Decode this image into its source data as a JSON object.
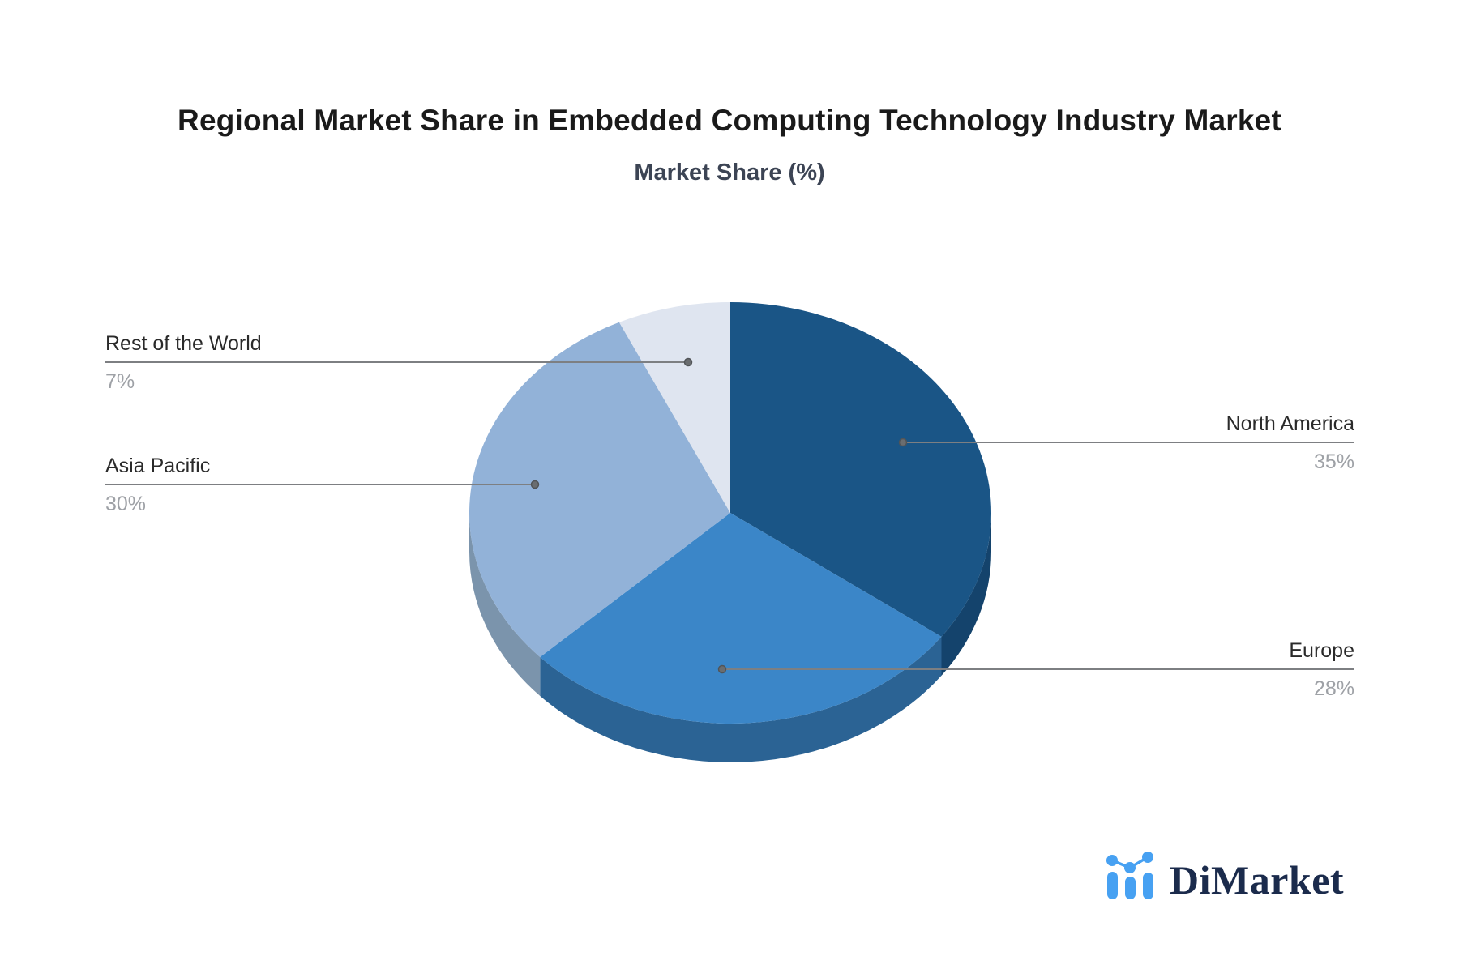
{
  "header": {
    "title": "Regional Market Share in Embedded Computing Technology Industry Market",
    "subtitle": "Market Share (%)"
  },
  "chart_data": {
    "type": "pie",
    "effect": "3d",
    "title": "Regional Market Share in Embedded Computing Technology Industry Market",
    "subtitle": "Market Share (%)",
    "unit": "%",
    "start_angle_deg": 0,
    "direction": "clockwise",
    "legend_position": "none",
    "grid": false,
    "slices": [
      {
        "label": "North America",
        "value": 35,
        "display": "35%",
        "color": "#1a5586",
        "side_color": "#14436c",
        "label_side": "right"
      },
      {
        "label": "Europe",
        "value": 28,
        "display": "28%",
        "color": "#3b86c8",
        "side_color": "#2b6394",
        "label_side": "right"
      },
      {
        "label": "Asia Pacific",
        "value": 30,
        "display": "30%",
        "color": "#92b2d8",
        "side_color": "#7b94ac",
        "label_side": "left"
      },
      {
        "label": "Rest of the World",
        "value": 7,
        "display": "7%",
        "color": "#dfe5f0",
        "side_color": null,
        "label_side": "left"
      }
    ],
    "leader_line_color": "#7d7f82",
    "leader_dot_color": "#6a6d70"
  },
  "branding": {
    "logo_text": "DiMarket",
    "logo_color": "#1b2b4c",
    "logo_accent": "#47a1f2",
    "logo_icon": "bar-chart-trend-icon"
  }
}
